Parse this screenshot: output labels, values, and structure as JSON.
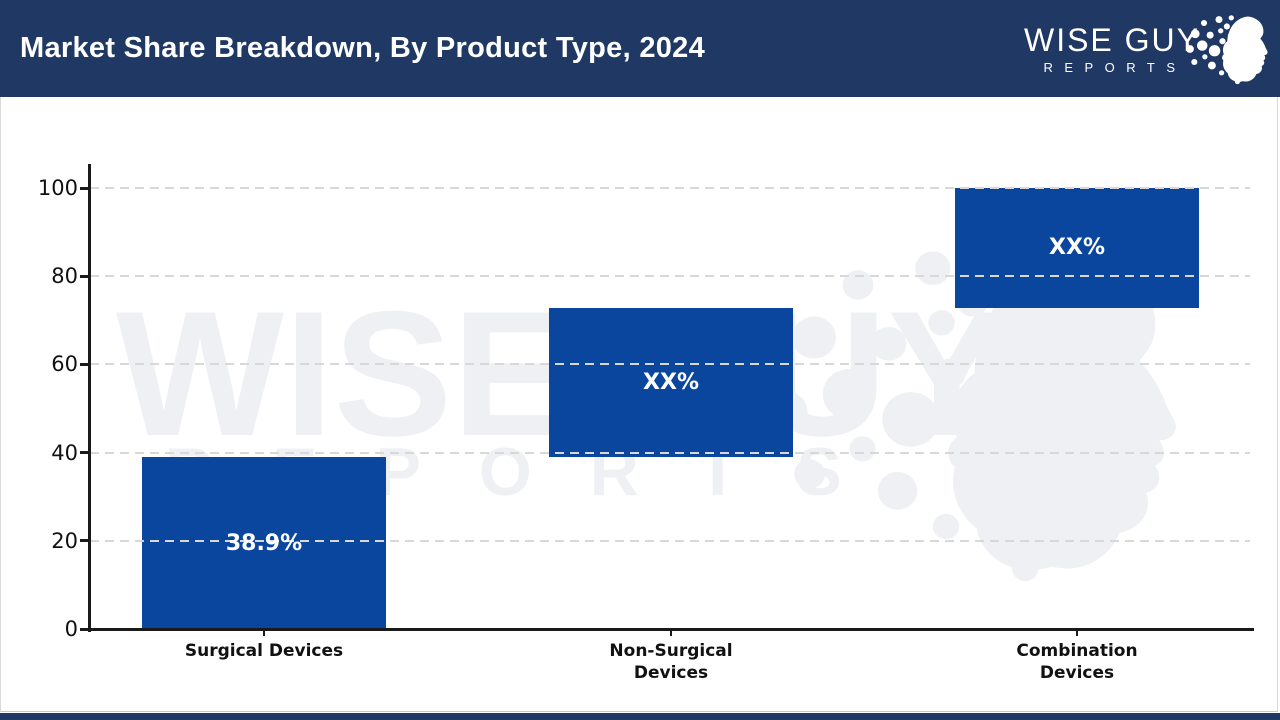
{
  "header": {
    "title": "Market Share Breakdown, By Product Type, 2024",
    "logo": {
      "line1": "WISE GUY",
      "line2": "REPORTS"
    }
  },
  "watermark": {
    "line1": "WISE GUY",
    "line2": "REPORTS"
  },
  "colors": {
    "header_bg": "#1f3864",
    "footer_bg": "#1f3864",
    "bar": "#0a469e",
    "bar_label_text": "#ffffff",
    "grid": "#d8d8d8",
    "axis": "#1a1a1a",
    "tick_text": "#111111",
    "watermark": "#eff0f3"
  },
  "chart_data": {
    "type": "bar",
    "subtype": "floating-stacked-percentage",
    "title": "Market Share Breakdown, By Product Type, 2024",
    "categories": [
      "Surgical Devices",
      "Non-Surgical Devices",
      "Combination Devices"
    ],
    "category_label_lines": [
      [
        "Surgical Devices"
      ],
      [
        "Non-Surgical",
        "Devices"
      ],
      [
        "Combination",
        "Devices"
      ]
    ],
    "bars": [
      {
        "category": "Surgical Devices",
        "start": 0,
        "end": 38.9,
        "label": "38.9%"
      },
      {
        "category": "Non-Surgical Devices",
        "start": 38.9,
        "end": 72.9,
        "label": "XX%"
      },
      {
        "category": "Combination Devices",
        "start": 72.9,
        "end": 100,
        "label": "XX%"
      }
    ],
    "y_ticks": [
      0,
      20,
      40,
      60,
      80,
      100
    ],
    "ylim": [
      0,
      100
    ],
    "xlabel": "",
    "ylabel": "",
    "grid": "dashed-horizontal",
    "legend": "none"
  }
}
